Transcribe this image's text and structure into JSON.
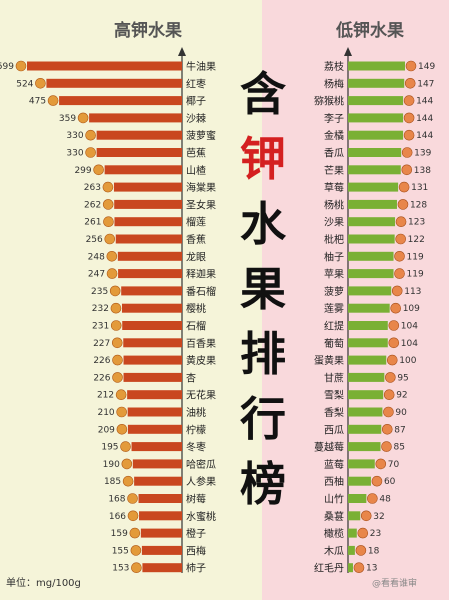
{
  "chart_data": [
    {
      "type": "bar",
      "title": "高钾水果",
      "categories": [
        "牛油果",
        "红枣",
        "椰子",
        "沙棘",
        "菠萝蜜",
        "芭蕉",
        "山楂",
        "海棠果",
        "圣女果",
        "榴莲",
        "香蕉",
        "龙眼",
        "释迦果",
        "番石榴",
        "樱桃",
        "石榴",
        "百香果",
        "黄皮果",
        "杏",
        "无花果",
        "油桃",
        "柠檬",
        "冬枣",
        "哈密瓜",
        "人参果",
        "树莓",
        "水蜜桃",
        "橙子",
        "西梅",
        "柿子"
      ],
      "values": [
        599,
        524,
        475,
        359,
        330,
        330,
        299,
        263,
        262,
        261,
        256,
        248,
        247,
        235,
        232,
        231,
        227,
        226,
        226,
        212,
        210,
        209,
        195,
        190,
        185,
        168,
        166,
        159,
        155,
        153
      ],
      "color": "#c9471f"
    },
    {
      "type": "bar",
      "title": "低钾水果",
      "categories": [
        "荔枝",
        "杨梅",
        "猕猴桃",
        "李子",
        "金橘",
        "香瓜",
        "芒果",
        "草莓",
        "杨桃",
        "沙果",
        "枇杷",
        "柚子",
        "苹果",
        "菠萝",
        "莲雾",
        "红提",
        "葡萄",
        "蛋黄果",
        "甘蔗",
        "雪梨",
        "香梨",
        "西瓜",
        "蔓越莓",
        "蓝莓",
        "西柚",
        "山竹",
        "桑葚",
        "橄榄",
        "木瓜",
        "红毛丹"
      ],
      "values": [
        149,
        147,
        144,
        144,
        144,
        139,
        138,
        131,
        128,
        123,
        122,
        119,
        119,
        113,
        109,
        104,
        104,
        100,
        95,
        92,
        90,
        87,
        85,
        70,
        60,
        48,
        32,
        23,
        18,
        13
      ],
      "color": "#7ab034"
    }
  ],
  "title_chars": [
    "含",
    "钾",
    "水",
    "果",
    "排",
    "行",
    "榜"
  ],
  "title_colors": [
    "#111111",
    "#d42020",
    "#111111",
    "#111111",
    "#111111",
    "#111111",
    "#111111"
  ],
  "unit_label": "单位：mg/100g",
  "watermark": "@看看谁审"
}
